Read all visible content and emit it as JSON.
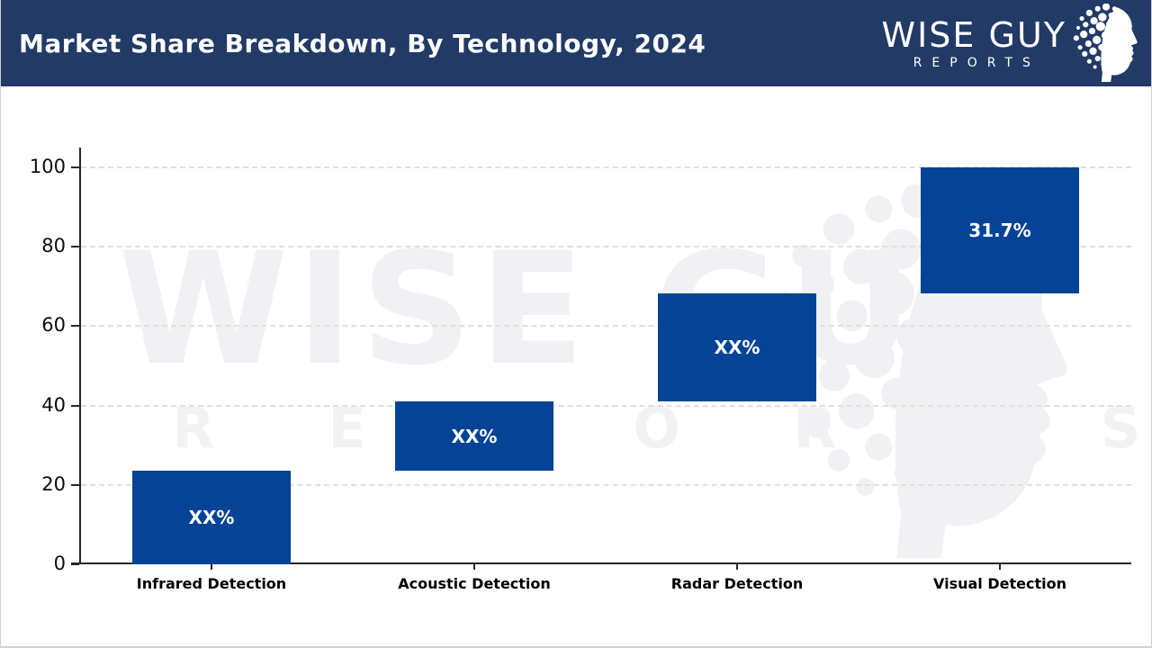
{
  "header": {
    "title": "Market Share Breakdown, By Technology, 2024",
    "logo": {
      "line1": "WISE GUY",
      "line2": "REPORTS"
    }
  },
  "watermark": {
    "line1": "WISE GUY",
    "line2": "R E P O R T S"
  },
  "colors": {
    "header_bg": "#213a66",
    "bar_blue": "#054396",
    "axis": "#262626",
    "gridline": "#e0e0e0",
    "watermark": "#f1f1f3"
  },
  "chart_data": {
    "type": "bar",
    "subtype": "floating-segment-breakdown",
    "title": "Market Share Breakdown, By Technology, 2024",
    "categories": [
      "Infrared Detection",
      "Acoustic Detection",
      "Radar Detection",
      "Visual Detection"
    ],
    "segments": [
      {
        "category": "Infrared Detection",
        "start": 0,
        "end": 23.5,
        "label": "XX%"
      },
      {
        "category": "Acoustic Detection",
        "start": 23.5,
        "end": 41.0,
        "label": "XX%"
      },
      {
        "category": "Radar Detection",
        "start": 41.0,
        "end": 68.3,
        "label": "XX%"
      },
      {
        "category": "Visual Detection",
        "start": 68.3,
        "end": 100.0,
        "label": "31.7%"
      }
    ],
    "ylim": [
      0,
      100
    ],
    "yticks": [
      0,
      20,
      40,
      60,
      80,
      100
    ],
    "xlabel": "",
    "ylabel": "",
    "grid": "horizontal-dashed",
    "legend": "none",
    "bar_color": "#054396"
  }
}
